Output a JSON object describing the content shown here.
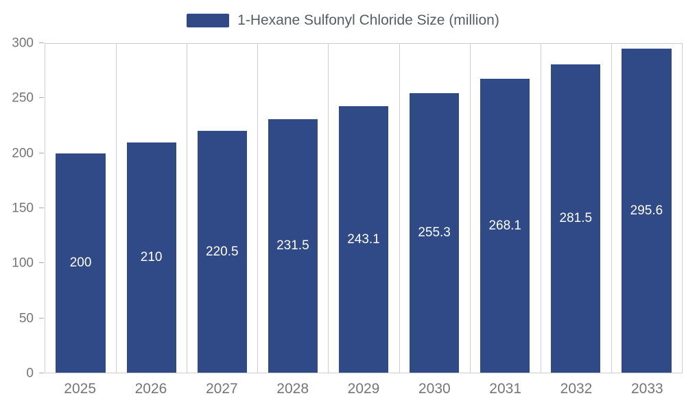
{
  "chart_data": {
    "type": "bar",
    "title": "1-Hexane Sulfonyl Chloride Size (million)",
    "categories": [
      "2025",
      "2026",
      "2027",
      "2028",
      "2029",
      "2030",
      "2031",
      "2032",
      "2033"
    ],
    "values": [
      200,
      210,
      220.5,
      231.5,
      243.1,
      255.3,
      268.1,
      281.5,
      295.6
    ],
    "value_labels": [
      "200",
      "210",
      "220.5",
      "231.5",
      "243.1",
      "255.3",
      "268.1",
      "281.5",
      "295.6"
    ],
    "xlabel": "",
    "ylabel": "",
    "ylim": [
      0,
      300
    ],
    "yticks": [
      0,
      50,
      100,
      150,
      200,
      250,
      300
    ],
    "grid": true,
    "grid_style": "vertical",
    "legend_position": "top-center",
    "bar_color": "#2f4a87",
    "value_label_color": "#ffffff",
    "legend_text_color": "#565d66",
    "axis_text_color": "#757575",
    "grid_color": "#cccccc"
  }
}
